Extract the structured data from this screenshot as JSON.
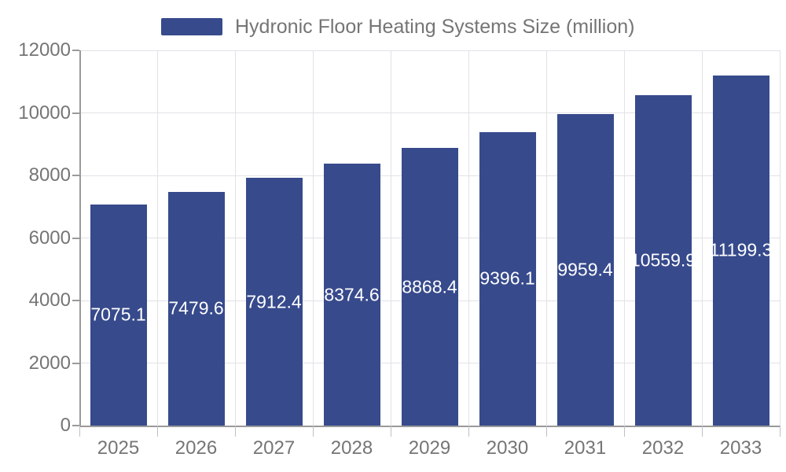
{
  "chart_data": {
    "type": "bar",
    "title": "",
    "legend": "Hydronic Floor Heating Systems Size (million)",
    "legend_position": "top",
    "categories": [
      "2025",
      "2026",
      "2027",
      "2028",
      "2029",
      "2030",
      "2031",
      "2032",
      "2033"
    ],
    "values": [
      7075.1,
      7479.6,
      7912.4,
      8374.6,
      8868.4,
      9396.1,
      9959.4,
      10559.9,
      11199.3
    ],
    "xlabel": "",
    "ylabel": "",
    "ylim": [
      0,
      12000
    ],
    "yticks": [
      0,
      2000,
      4000,
      6000,
      8000,
      10000,
      12000
    ],
    "grid": "horizontal and vertical gridlines on",
    "value_labels": "inside bars, centered, white",
    "colors": {
      "bar": "#374A8C",
      "grid": "#E2E2E8",
      "axis": "#9A9A9A",
      "x_tick": "#BFBFC6",
      "text": "#757575",
      "value_label": "#FFFFFF",
      "background": "#FFFFFF"
    }
  }
}
